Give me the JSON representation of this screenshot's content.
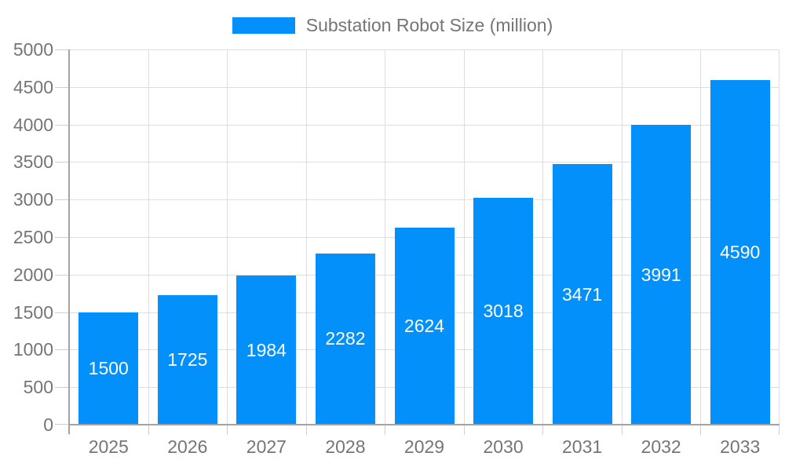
{
  "legend": {
    "label": "Substation Robot Size (million)"
  },
  "chart_data": {
    "type": "bar",
    "title": "Substation Robot Size (million)",
    "categories": [
      "2025",
      "2026",
      "2027",
      "2028",
      "2029",
      "2030",
      "2031",
      "2032",
      "2033"
    ],
    "values": [
      1500,
      1725,
      1984,
      2282,
      2624,
      3018,
      3471,
      3991,
      4590
    ],
    "xlabel": "",
    "ylabel": "",
    "ylim": [
      0,
      5000
    ],
    "yticks": [
      0,
      500,
      1000,
      1500,
      2000,
      2500,
      3000,
      3500,
      4000,
      4500,
      5000
    ],
    "grid": true,
    "legend_position": "top-center",
    "value_labels": "inside-center",
    "colors": {
      "bar": "#0390FA",
      "value_label": "#FFFFFF",
      "axis_text": "#757575",
      "grid_line": "#DDDDDD",
      "tick_line": "#CFCFCF",
      "axis_line": "#A3A3A3",
      "background": "#FFFFFF"
    }
  }
}
